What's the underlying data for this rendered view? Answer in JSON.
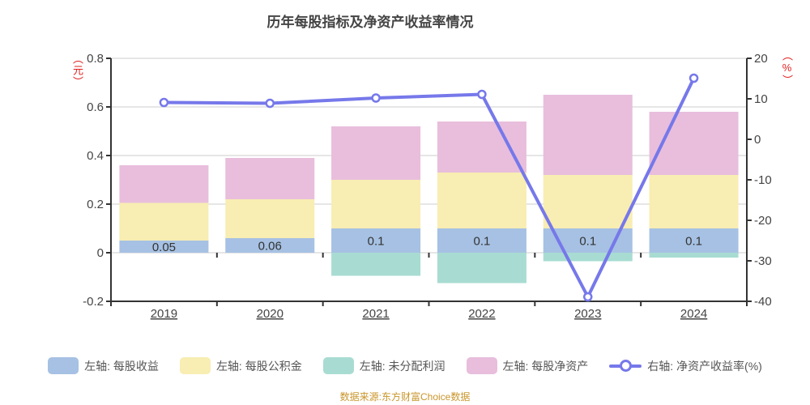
{
  "title": "历年每股指标及净资产收益率情况",
  "footer": {
    "source_text": "数据来源:东方财富Choice数据"
  },
  "axes": {
    "left_unit": "（元）",
    "right_unit": "（%）",
    "left_ticks": [
      "0.8",
      "0.6",
      "0.4",
      "0.2",
      "0",
      "-0.2"
    ],
    "right_ticks": [
      "20",
      "10",
      "0",
      "-10",
      "-20",
      "-30",
      "-40"
    ]
  },
  "legend": [
    {
      "label": "左轴: 每股收益",
      "color": "#A6C1E3",
      "type": "bar"
    },
    {
      "label": "左轴: 每股公积金",
      "color": "#F8EDB2",
      "type": "bar"
    },
    {
      "label": "左轴: 未分配利润",
      "color": "#A8DCD2",
      "type": "bar"
    },
    {
      "label": "左轴: 每股净资产",
      "color": "#E8BEDC",
      "type": "bar"
    },
    {
      "label": "右轴: 净资产收益率(%)",
      "color": "#7678EA",
      "type": "line"
    }
  ],
  "chart_data": {
    "type": "bar",
    "subtype": "stacked-bars-with-line",
    "categories": [
      "2019",
      "2020",
      "2021",
      "2022",
      "2023",
      "2024"
    ],
    "series": [
      {
        "name": "每股收益",
        "color": "#A6C1E3",
        "stack": "pos",
        "values": [
          0.05,
          0.06,
          0.1,
          0.1,
          0.1,
          0.1
        ],
        "labels": [
          "0.05",
          "0.06",
          "0.1",
          "0.1",
          "0.1",
          "0.1"
        ]
      },
      {
        "name": "每股公积金",
        "color": "#F8EDB2",
        "stack": "pos",
        "values": [
          0.155,
          0.16,
          0.2,
          0.23,
          0.22,
          0.22
        ]
      },
      {
        "name": "每股净资产",
        "color": "#E8BEDC",
        "stack": "pos",
        "values": [
          0.155,
          0.17,
          0.22,
          0.21,
          0.33,
          0.26
        ]
      },
      {
        "name": "未分配利润",
        "color": "#A8DCD2",
        "stack": "neg",
        "values": [
          0,
          0,
          -0.095,
          -0.125,
          -0.035,
          -0.02
        ]
      }
    ],
    "line": {
      "name": "净资产收益率(%)",
      "color": "#7678EA",
      "axis": "right",
      "values": [
        9.1,
        8.9,
        10.2,
        11.1,
        -38.9,
        15.1
      ]
    },
    "left_axis": {
      "min": -0.2,
      "max": 0.8,
      "step": 0.2
    },
    "right_axis": {
      "min": -40,
      "max": 20,
      "step": 10
    },
    "grid": true,
    "legend_position": "bottom"
  }
}
